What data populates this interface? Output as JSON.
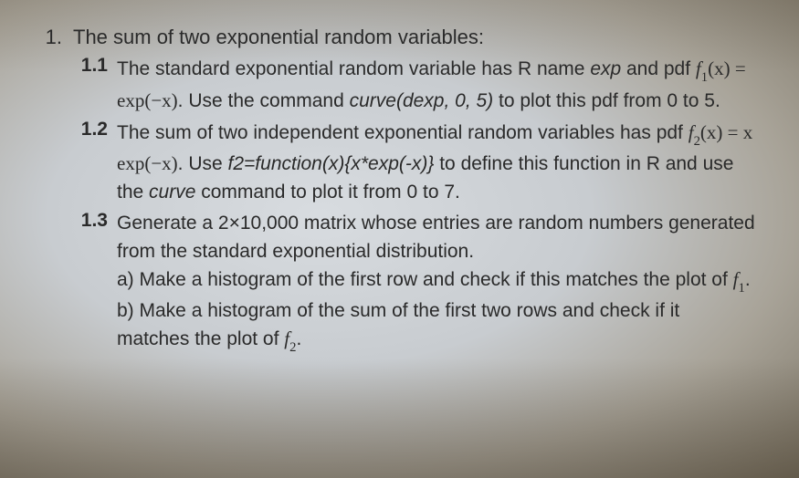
{
  "problem": {
    "number": "1.",
    "title": "The sum of two exponential random variables:",
    "items": [
      {
        "num": "1.1",
        "text_parts": {
          "p1": "The standard exponential random variable has R name ",
          "exp": "exp",
          "p2": " and pdf ",
          "f1": "f",
          "sub1": "1",
          "fx": "(x) = ",
          "expfn": "exp",
          "neg": "(−x)",
          "p3": ". Use the command ",
          "cmd": "curve(dexp, 0, 5)",
          "p4": " to plot this pdf from 0 to 5."
        }
      },
      {
        "num": "1.2",
        "text_parts": {
          "p1": "The sum of two independent exponential random variables has pdf ",
          "f2": "f",
          "sub2": "2",
          "fx": "(x) = x ",
          "expfn": "exp",
          "neg": "(−x)",
          "p2": ". Use ",
          "cmd": "f2=function(x){x*exp(-x)}",
          "p3": " to define this function in R and use the ",
          "curve": "curve",
          "p4": " command to plot it from 0 to 7."
        }
      },
      {
        "num": "1.3",
        "text_parts": {
          "p1": "Generate a 2×10,000 matrix whose entries are random numbers generated from the standard exponential distribution.",
          "a1": "a) Make a histogram of the first row and check if this matches the plot of ",
          "f1": "f",
          "sub1": "1",
          "a2": ".",
          "b1": "b) Make a histogram of the sum of the first two rows and check if it matches the plot of ",
          "f2": "f",
          "sub2": "2",
          "b2": "."
        }
      }
    ]
  },
  "style": {
    "text_color": "#2a2a2a",
    "main_fontsize": 22,
    "sub_fontsize": 21
  }
}
